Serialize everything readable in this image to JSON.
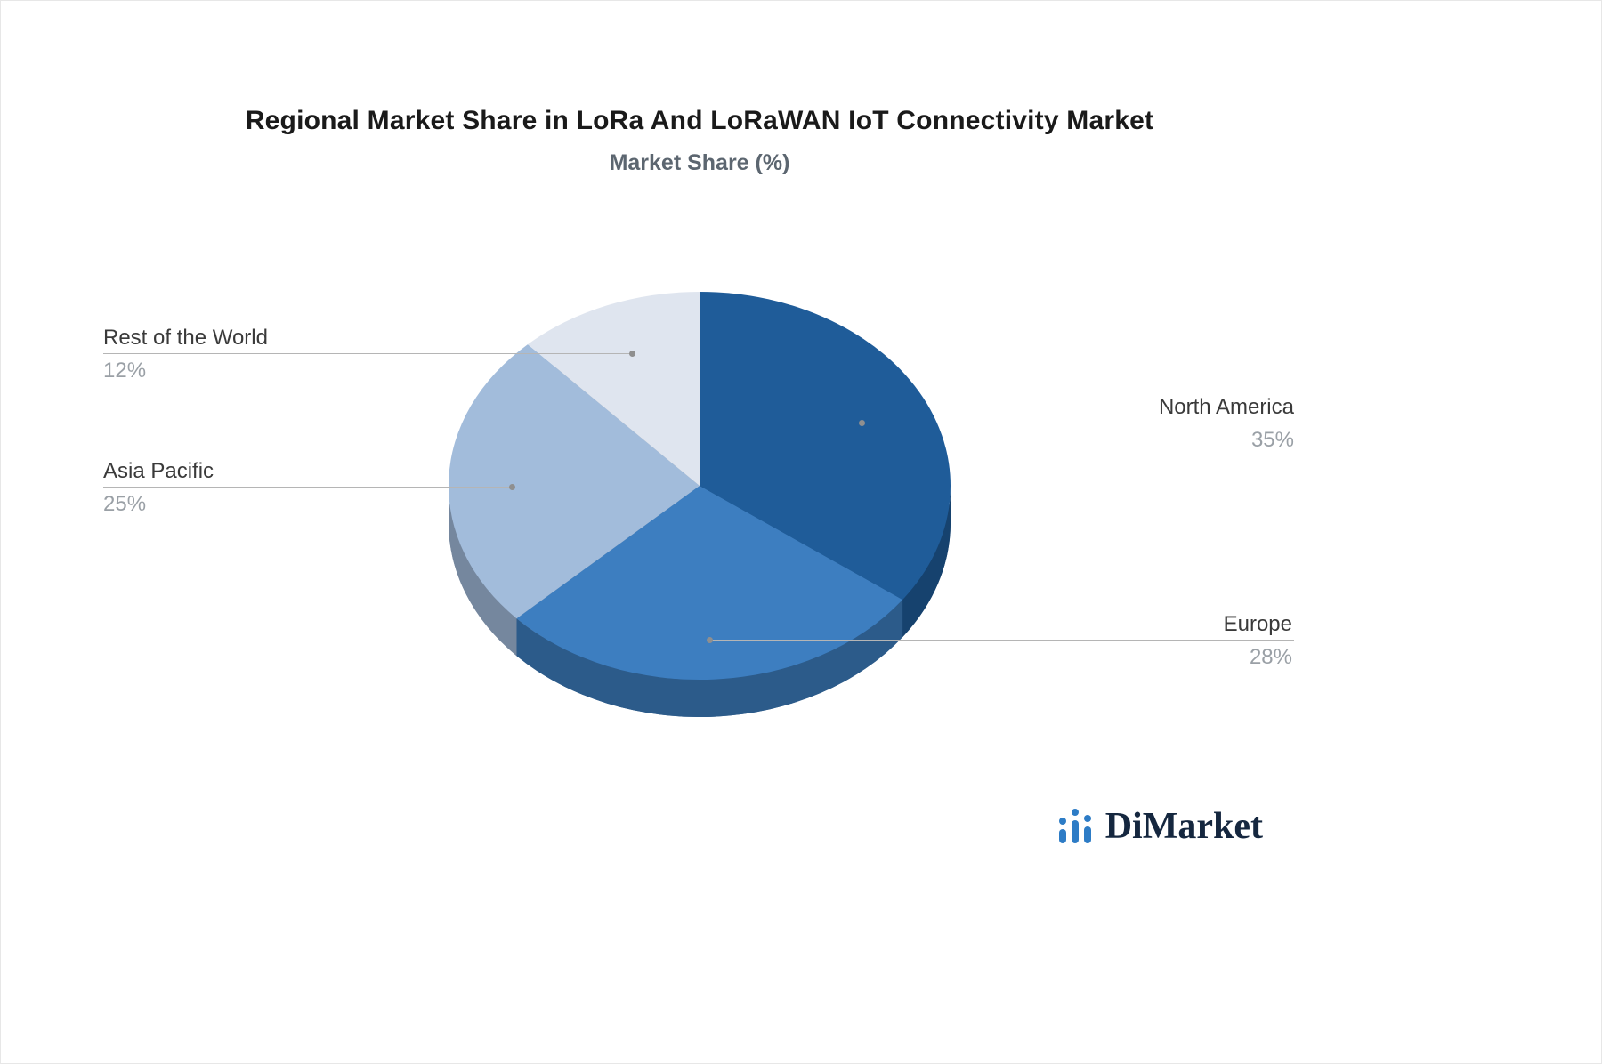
{
  "chart_data": {
    "type": "pie",
    "style": "3d",
    "title": "Regional Market Share in LoRa And LoRaWAN IoT Connectivity Market",
    "subtitle": "Market Share (%)",
    "unit": "%",
    "start_angle_deg": -90,
    "direction": "clockwise",
    "legend_position": "none",
    "label_style": "callout",
    "slices": [
      {
        "label": "North America",
        "value": 35,
        "display": "35%",
        "color": "#1f5c99"
      },
      {
        "label": "Europe",
        "value": 28,
        "display": "28%",
        "color": "#3d7ec0"
      },
      {
        "label": "Asia Pacific",
        "value": 25,
        "display": "25%",
        "color": "#a2bcdb"
      },
      {
        "label": "Rest of the World",
        "value": 12,
        "display": "12%",
        "color": "#dfe5ef"
      }
    ]
  },
  "logo": {
    "text": "DiMarket",
    "icon": "bar-chart-icon",
    "icon_color": "#2d7cc6",
    "text_color": "#15273f"
  }
}
